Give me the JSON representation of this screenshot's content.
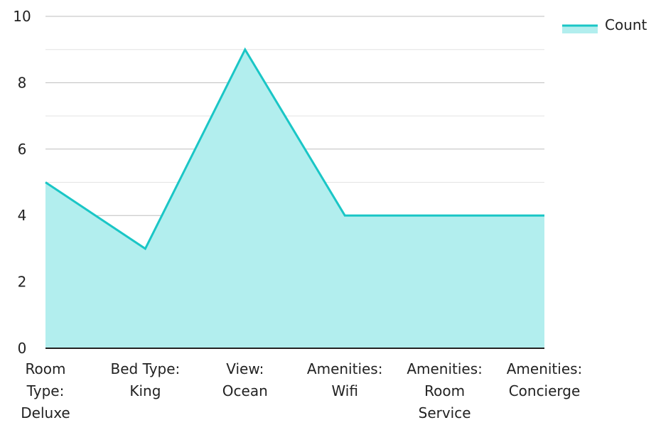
{
  "chart_data": {
    "type": "area",
    "categories": [
      [
        "Room",
        "Type:",
        "Deluxe"
      ],
      [
        "Bed Type:",
        "King"
      ],
      [
        "View:",
        "Ocean"
      ],
      [
        "Amenities:",
        "Wifi"
      ],
      [
        "Amenities:",
        "Room",
        "Service"
      ],
      [
        "Amenities:",
        "Concierge"
      ]
    ],
    "series": [
      {
        "name": "Count",
        "values": [
          5,
          3,
          9,
          4,
          4,
          4
        ]
      }
    ],
    "ylim": [
      0,
      10
    ],
    "yticks": [
      "0",
      "2",
      "4",
      "6",
      "8",
      "10"
    ],
    "grid": true,
    "legend": "top-right",
    "colors": {
      "line": "#1ac6c6",
      "fill": "#b2eeee",
      "grid_major": "#bdbdbd",
      "grid_minor": "#e3e3e3",
      "axis": "#222222"
    }
  }
}
